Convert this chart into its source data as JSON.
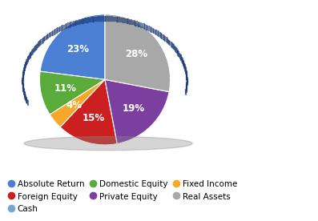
{
  "values": [
    23,
    11,
    4,
    15,
    19,
    28
  ],
  "colors": [
    "#4a7fd4",
    "#5aab3c",
    "#f5a82a",
    "#cc2020",
    "#7b3fa0",
    "#a8a8a8"
  ],
  "dark_border_color": "#1a3a7a",
  "background_color": "#ffffff",
  "text_color": "#ffffff",
  "pct_labels": [
    "23%",
    "11%",
    "4%",
    "15%",
    "19%",
    "28%"
  ],
  "startangle": 90,
  "legend_entries": [
    {
      "label": "Absolute Return",
      "color": "#4a7fd4"
    },
    {
      "label": "Foreign Equity",
      "color": "#cc2020"
    },
    {
      "label": "Cash",
      "color": "#6fa8d4"
    },
    {
      "label": "Domestic Equity",
      "color": "#5aab3c"
    },
    {
      "label": "Private Equity",
      "color": "#7b3fa0"
    },
    {
      "label": "Fixed Income",
      "color": "#f5a82a"
    },
    {
      "label": "Real Assets",
      "color": "#a8a8a8"
    }
  ],
  "figsize": [
    3.97,
    2.76
  ],
  "dpi": 100
}
